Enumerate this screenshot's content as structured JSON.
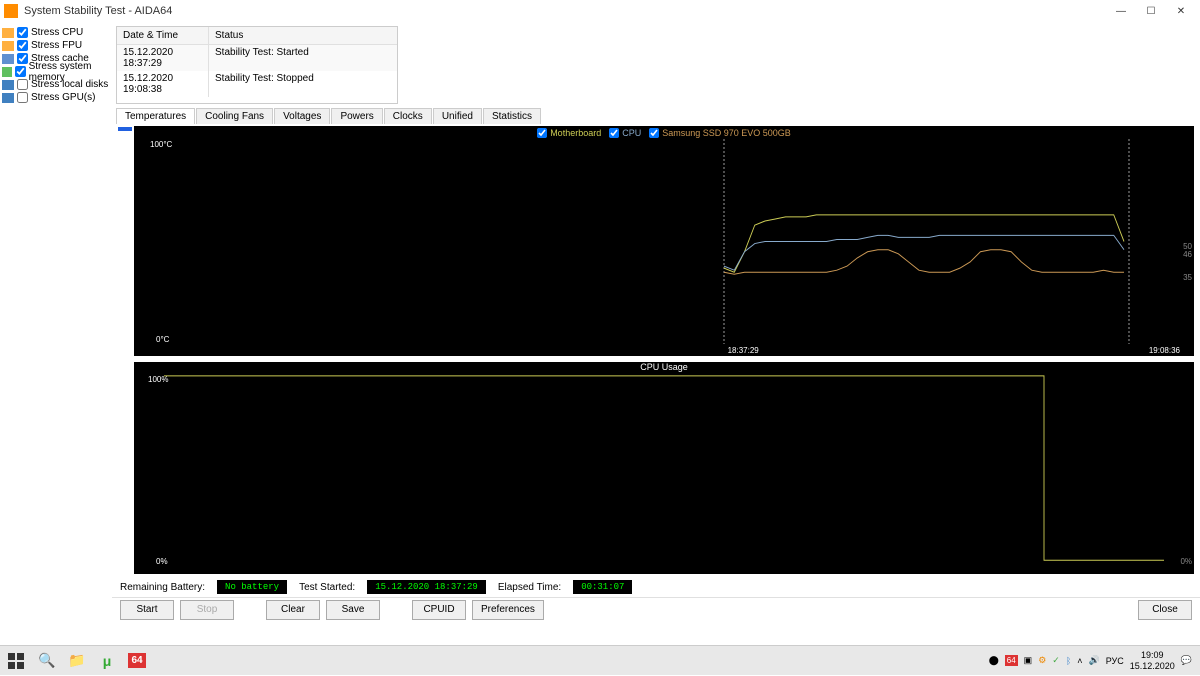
{
  "window": {
    "title": "System Stability Test - AIDA64",
    "icon_color": "#ff8c00"
  },
  "stress_options": [
    {
      "label": "Stress CPU",
      "checked": true,
      "icon": "#ffb040"
    },
    {
      "label": "Stress FPU",
      "checked": true,
      "icon": "#ffb040"
    },
    {
      "label": "Stress cache",
      "checked": true,
      "icon": "#6090d0"
    },
    {
      "label": "Stress system memory",
      "checked": true,
      "icon": "#60c060"
    },
    {
      "label": "Stress local disks",
      "checked": false,
      "icon": "#4080c0"
    },
    {
      "label": "Stress GPU(s)",
      "checked": false,
      "icon": "#4080c0"
    }
  ],
  "log": {
    "header_date": "Date & Time",
    "header_status": "Status",
    "rows": [
      {
        "date": "15.12.2020 18:37:29",
        "status": "Stability Test: Started"
      },
      {
        "date": "15.12.2020 19:08:38",
        "status": "Stability Test: Stopped"
      }
    ]
  },
  "tabs": [
    "Temperatures",
    "Cooling Fans",
    "Voltages",
    "Powers",
    "Clocks",
    "Unified",
    "Statistics"
  ],
  "active_tab": 0,
  "temp_chart": {
    "legend": [
      {
        "label": "Motherboard",
        "color": "#cccc55",
        "checked": true
      },
      {
        "label": "CPU",
        "color": "#88aacc",
        "checked": true
      },
      {
        "label": "Samsung SSD 970 EVO 500GB",
        "color": "#cc9955",
        "checked": true
      }
    ],
    "y_top": "100°C",
    "y_bottom": "0°C",
    "x_start": "18:37:29",
    "x_end": "19:08:36",
    "r_labels": [
      {
        "v": "50",
        "pct": 50
      },
      {
        "v": "46",
        "pct": 46
      },
      {
        "v": "35",
        "pct": 35
      }
    ],
    "grid_color": "#0a3a0a",
    "grid_major_color": "#185018",
    "bg": "#000000",
    "plot_left_pct": 56,
    "plot_right_pct": 96,
    "cursor_start_pct": 56,
    "cursor_end_pct": 96.5,
    "series": {
      "motherboard": {
        "color": "#cccc55",
        "values": [
          37,
          35,
          45,
          58,
          60,
          61,
          62,
          62,
          62,
          63,
          63,
          63,
          63,
          63,
          63,
          63,
          63,
          63,
          63,
          63,
          63,
          63,
          63,
          63,
          63,
          63,
          63,
          63,
          63,
          63,
          63,
          63,
          63,
          63,
          63,
          63,
          63,
          63,
          63,
          50
        ]
      },
      "cpu": {
        "color": "#88aacc",
        "values": [
          38,
          36,
          45,
          49,
          50,
          50,
          50,
          50,
          50,
          50,
          50,
          51,
          51,
          51,
          52,
          53,
          53,
          52,
          52,
          52,
          52,
          53,
          53,
          53,
          53,
          53,
          53,
          53,
          53,
          53,
          53,
          53,
          53,
          53,
          53,
          53,
          53,
          53,
          53,
          46
        ]
      },
      "ssd": {
        "color": "#cc9955",
        "values": [
          35,
          34,
          35,
          35,
          35,
          35,
          35,
          35,
          35,
          35,
          35,
          36,
          38,
          42,
          45,
          46,
          46,
          44,
          40,
          36,
          35,
          35,
          35,
          37,
          40,
          45,
          46,
          46,
          45,
          40,
          36,
          35,
          35,
          35,
          35,
          35,
          35,
          36,
          35,
          35
        ]
      }
    }
  },
  "cpu_chart": {
    "title": "CPU Usage",
    "y_top": "100%",
    "y_bottom": "0%",
    "r_bottom": "0%",
    "bg": "#000000",
    "series": {
      "color": "#cccc55",
      "drop_at_pct": 88,
      "high": 99,
      "low": 2
    }
  },
  "status": {
    "battery_label": "Remaining Battery:",
    "battery_value": "No battery",
    "started_label": "Test Started:",
    "started_value": "15.12.2020 18:37:29",
    "elapsed_label": "Elapsed Time:",
    "elapsed_value": "00:31:07"
  },
  "buttons": {
    "start": "Start",
    "stop": "Stop",
    "clear": "Clear",
    "save": "Save",
    "cpuid": "CPUID",
    "prefs": "Preferences",
    "close": "Close"
  },
  "taskbar": {
    "tray_text": "РУС",
    "clock_time": "19:09",
    "clock_date": "15.12.2020"
  }
}
